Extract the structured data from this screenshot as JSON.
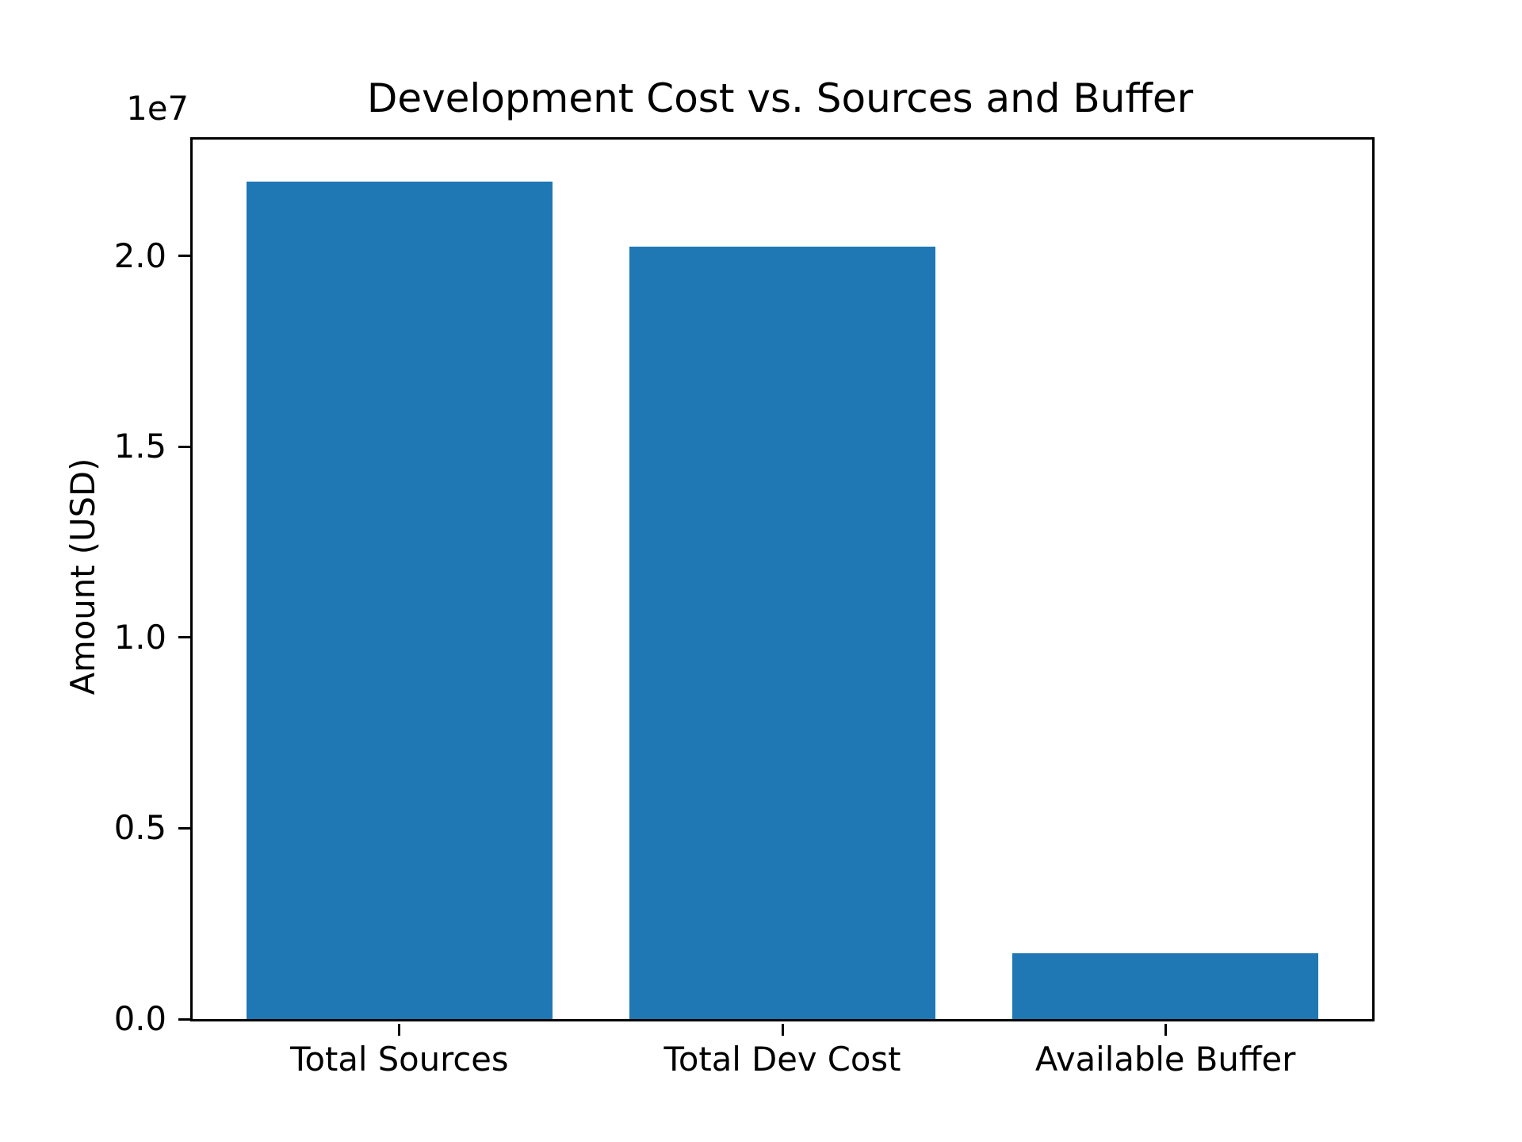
{
  "chart_data": {
    "type": "bar",
    "title": "Development Cost vs. Sources and Buffer",
    "xlabel": "",
    "ylabel": "Amount (USD)",
    "y_offset_text": "1e7",
    "categories": [
      "Total Sources",
      "Total Dev Cost",
      "Available Buffer"
    ],
    "values": [
      21950000,
      20250000,
      1730000
    ],
    "bar_color": "#1f77b4",
    "ylim": [
      0,
      23047500
    ],
    "yticks": {
      "values": [
        0,
        5000000,
        10000000,
        15000000,
        20000000
      ],
      "labels": [
        "0.0",
        "0.5",
        "1.0",
        "1.5",
        "2.0"
      ]
    },
    "grid": false,
    "legend_position": "none",
    "bar_width_fraction": 0.8,
    "x_margin_fraction": 0.05,
    "axis_color": "#000000",
    "background_color": "#ffffff"
  }
}
